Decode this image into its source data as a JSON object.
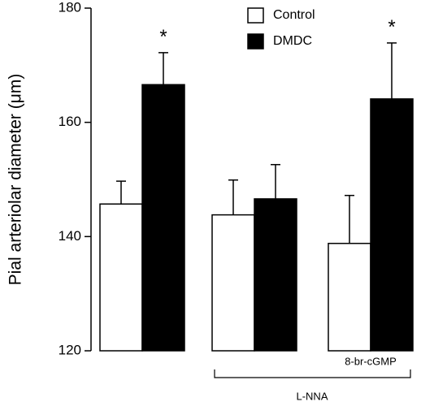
{
  "chart_data": {
    "type": "bar",
    "y_label": "Pial arteriolar diameter (μm)",
    "categories": [
      null,
      null,
      "8-br-cGMP"
    ],
    "group_label": "L-NNA",
    "series": [
      {
        "name": "Control",
        "color": "#ffffff",
        "values": [
          145.7,
          143.8,
          138.8
        ],
        "errors": [
          4.0,
          6.1,
          8.4
        ]
      },
      {
        "name": "DMDC",
        "color": "#000000",
        "values": [
          166.6,
          146.6,
          164.1
        ],
        "errors": [
          5.6,
          6.0,
          9.8
        ],
        "labels": [
          "*",
          null,
          "*"
        ]
      }
    ],
    "ylim": [
      120,
      180
    ],
    "yticks": [
      120,
      140,
      160,
      180
    ],
    "legend": "top-right"
  }
}
